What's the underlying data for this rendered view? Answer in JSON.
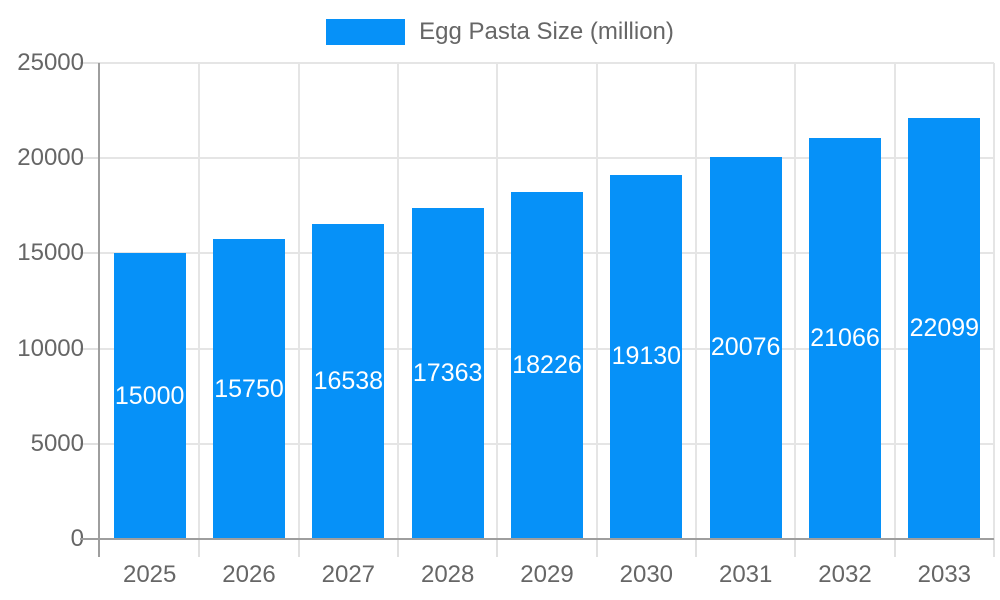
{
  "chart_data": {
    "type": "bar",
    "title": "",
    "legend_label": "Egg Pasta Size (million)",
    "legend_position": "top",
    "categories": [
      "2025",
      "2026",
      "2027",
      "2028",
      "2029",
      "2030",
      "2031",
      "2032",
      "2033"
    ],
    "series": [
      {
        "name": "Egg Pasta Size (million)",
        "values": [
          15000,
          15750,
          16538,
          17363,
          18226,
          19130,
          20076,
          21066,
          22099
        ]
      }
    ],
    "value_labels": "inside bars, centered, white",
    "xlabel": "",
    "ylabel": "",
    "ylim": [
      0,
      25000
    ],
    "yticks": [
      0,
      5000,
      10000,
      15000,
      20000,
      25000
    ],
    "grid": true
  },
  "colors": {
    "bar": "#0691f8",
    "axis_text": "#666666",
    "grid": "#e5e5e5",
    "axis_line": "#9e9e9e",
    "tick": "#e0e0e0",
    "data_label": "#ffffff",
    "background": "#ffffff"
  }
}
